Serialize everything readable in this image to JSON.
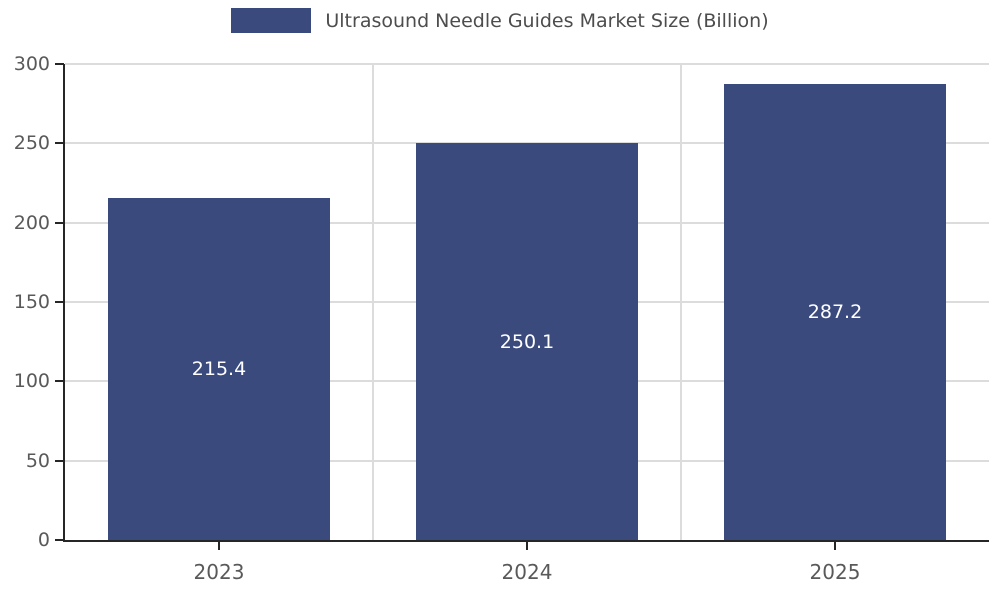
{
  "chart_data": {
    "type": "bar",
    "title": "Ultrasound Needle Guides Market Size (Billion)",
    "legend": {
      "position": "top",
      "label": "Ultrasound Needle Guides Market Size (Billion)"
    },
    "categories": [
      "2023",
      "2024",
      "2025"
    ],
    "values": [
      215.4,
      250.1,
      287.2
    ],
    "value_labels": [
      "215.4",
      "250.1",
      "287.2"
    ],
    "xlabel": "",
    "ylabel": "",
    "ylim": [
      0,
      300
    ],
    "yticks": [
      0,
      50,
      100,
      150,
      200,
      250,
      300
    ],
    "grid": true,
    "bar_color": "#3a4a7d",
    "value_label_color": "#ffffff",
    "tick_label_color": "#595959",
    "background_color": "#ffffff"
  }
}
